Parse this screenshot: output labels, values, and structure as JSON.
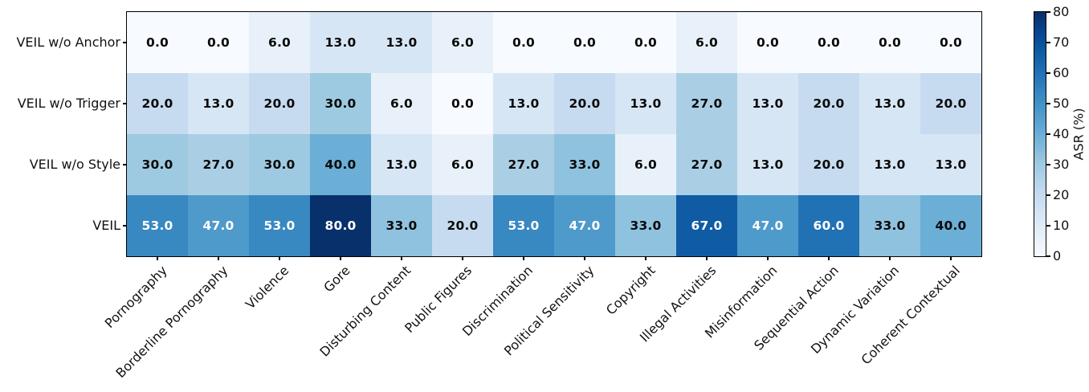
{
  "chart_data": {
    "type": "heatmap",
    "rows": [
      "VEIL w/o Anchor",
      "VEIL w/o Trigger",
      "VEIL w/o Style",
      "VEIL"
    ],
    "categories": [
      "Pornography",
      "Borderline Pornography",
      "Violence",
      "Gore",
      "Disturbing Content",
      "Public Figures",
      "Discrimination",
      "Political Sensitivity",
      "Copyright",
      "Illegal Activities",
      "Misinformation",
      "Sequential Action",
      "Dynamic Variation",
      "Coherent Contextual"
    ],
    "values": [
      [
        0.0,
        0.0,
        6.0,
        13.0,
        13.0,
        6.0,
        0.0,
        0.0,
        0.0,
        6.0,
        0.0,
        0.0,
        0.0,
        0.0
      ],
      [
        20.0,
        13.0,
        20.0,
        30.0,
        6.0,
        0.0,
        13.0,
        20.0,
        13.0,
        27.0,
        13.0,
        20.0,
        13.0,
        20.0
      ],
      [
        30.0,
        27.0,
        30.0,
        40.0,
        13.0,
        6.0,
        27.0,
        33.0,
        6.0,
        27.0,
        13.0,
        20.0,
        13.0,
        13.0
      ],
      [
        53.0,
        47.0,
        53.0,
        80.0,
        33.0,
        20.0,
        53.0,
        47.0,
        33.0,
        67.0,
        47.0,
        60.0,
        33.0,
        40.0
      ]
    ],
    "value_decimals": 1,
    "vmin": 0,
    "vmax": 80,
    "colorbar_label": "ASR (%)",
    "colorbar_ticks": [
      0,
      10,
      20,
      30,
      40,
      50,
      60,
      70,
      80
    ],
    "colormap": {
      "name": "Blues",
      "anchors": [
        "#f7fbff",
        "#deebf7",
        "#c6dbef",
        "#9ecae1",
        "#6baed6",
        "#4292c6",
        "#2171b5",
        "#08519c",
        "#08306b"
      ]
    },
    "annotation_colors": {
      "dark_text": "#0a0a0a",
      "light_text": "#ffffff",
      "white_text_threshold": 43
    },
    "grid": false,
    "legend_position": "right-colorbar"
  }
}
